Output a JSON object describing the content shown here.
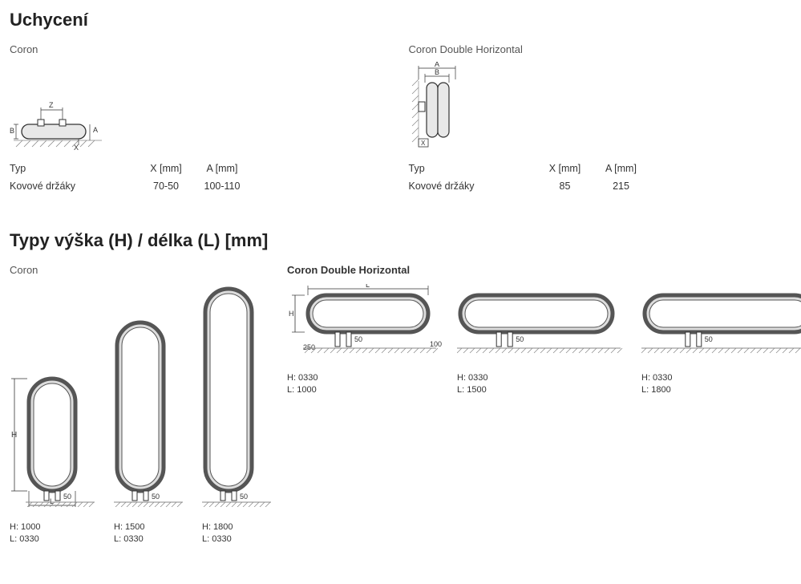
{
  "section1": {
    "title": "Uchycení",
    "left": {
      "name": "Coron",
      "diagram": {
        "labels": [
          "Z",
          "B",
          "A",
          "X"
        ],
        "stroke": "#333333",
        "fill": "#e8e8e8",
        "hatch": "#888888"
      },
      "table": {
        "headers": [
          "Typ",
          "X [mm]",
          "A [mm]"
        ],
        "row": [
          "Kovové držáky",
          "70-50",
          "100-110"
        ]
      }
    },
    "right": {
      "name": "Coron Double Horizontal",
      "diagram": {
        "labels": [
          "A",
          "B",
          "X"
        ],
        "stroke": "#333333",
        "fill": "#e8e8e8",
        "hatch": "#888888"
      },
      "table": {
        "headers": [
          "Typ",
          "X [mm]",
          "A [mm]"
        ],
        "row": [
          "Kovové držáky",
          "85",
          "215"
        ]
      }
    }
  },
  "section2": {
    "title": "Typy výška (H) / délka (L) [mm]",
    "left": {
      "name": "Coron",
      "shapes": {
        "stroke": "#555555",
        "fill": "#dddddd",
        "hatch": "#888888",
        "widthLabel": "50",
        "dimH": "H",
        "dimL": "L"
      },
      "items": [
        {
          "h": "H: 1000",
          "l": "L: 0330",
          "pxH": 140
        },
        {
          "h": "H: 1500",
          "l": "L: 0330",
          "pxH": 210
        },
        {
          "h": "H: 1800",
          "l": "L: 0330",
          "pxH": 252
        }
      ]
    },
    "right": {
      "name": "Coron Double Horizontal",
      "shapes": {
        "stroke": "#555555",
        "fill": "#dddddd",
        "hatch": "#888888",
        "widthLabel": "50",
        "dimH": "H",
        "dimL": "L",
        "label250": "250",
        "label100": "100"
      },
      "items": [
        {
          "h": "H: 0330",
          "l": "L: 1000",
          "pxW": 150
        },
        {
          "h": "H: 0330",
          "l": "L: 1500",
          "pxW": 190
        },
        {
          "h": "H: 0330",
          "l": "L: 1800",
          "pxW": 210
        }
      ]
    }
  }
}
